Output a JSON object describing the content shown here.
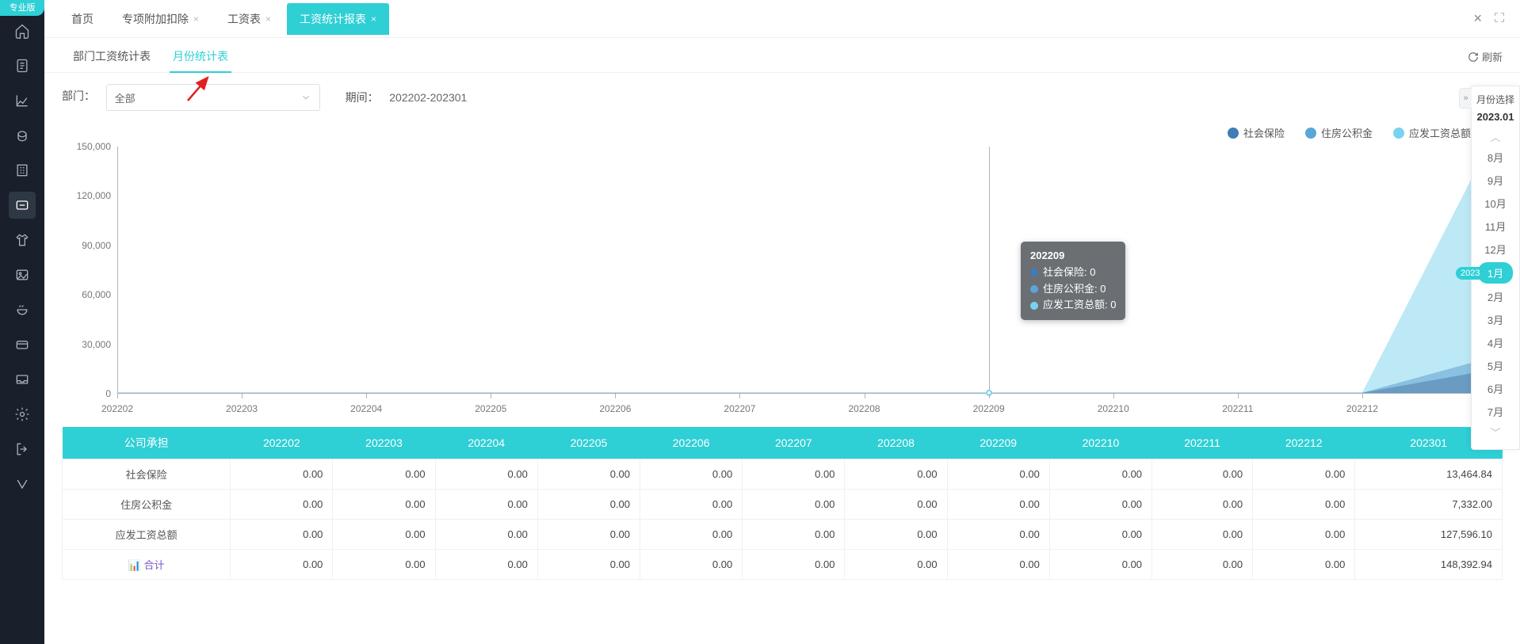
{
  "badge": "专业版",
  "tabs": [
    {
      "label": "首页",
      "closable": false,
      "active": false
    },
    {
      "label": "专项附加扣除",
      "closable": true,
      "active": false
    },
    {
      "label": "工资表",
      "closable": true,
      "active": false
    },
    {
      "label": "工资统计报表",
      "closable": true,
      "active": true
    }
  ],
  "subtabs": [
    {
      "label": "部门工资统计表",
      "active": false
    },
    {
      "label": "月份统计表",
      "active": true
    }
  ],
  "refresh_label": "刷新",
  "filters": {
    "dept_label": "部门：",
    "dept_value": "全部",
    "period_label": "期间：",
    "period_value": "202202-202301"
  },
  "legend": [
    {
      "label": "社会保险",
      "color": "#3f7db7"
    },
    {
      "label": "住房公积金",
      "color": "#5aa6d8"
    },
    {
      "label": "应发工资总额",
      "color": "#79d3ef"
    }
  ],
  "chart": {
    "type": "area",
    "ylim": [
      0,
      150000
    ],
    "yticks": [
      0,
      30000,
      60000,
      90000,
      120000,
      150000
    ],
    "ytick_labels": [
      "0",
      "30,000",
      "60,000",
      "90,000",
      "120,000",
      "150,000"
    ],
    "xcats": [
      "202202",
      "202203",
      "202204",
      "202205",
      "202206",
      "202207",
      "202208",
      "202209",
      "202210",
      "202211",
      "202212",
      "202301"
    ],
    "series": [
      {
        "name": "社会保险",
        "color": "#3f7db7",
        "fill": "#5f8fb9",
        "values": [
          0,
          0,
          0,
          0,
          0,
          0,
          0,
          0,
          0,
          0,
          0,
          13464.84
        ]
      },
      {
        "name": "住房公积金",
        "color": "#5aa6d8",
        "fill": "#7ab3d8",
        "values": [
          0,
          0,
          0,
          0,
          0,
          0,
          0,
          0,
          0,
          0,
          0,
          20796.84
        ]
      },
      {
        "name": "应发工资总额",
        "color": "#79d3ef",
        "fill": "#a7e1f3",
        "values": [
          0,
          0,
          0,
          0,
          0,
          0,
          0,
          0,
          0,
          0,
          0,
          148392.94
        ]
      }
    ],
    "crosshair_index": 7,
    "tooltip": {
      "title": "202209",
      "rows": [
        {
          "label": "社会保险: 0",
          "color": "#3f7db7"
        },
        {
          "label": "住房公积金: 0",
          "color": "#5aa6d8"
        },
        {
          "label": "应发工资总额: 0",
          "color": "#79d3ef"
        }
      ]
    },
    "background_color": "#ffffff",
    "axis_color": "#b0b4ba",
    "axis_label_color": "#777777",
    "axis_fontsize": 12
  },
  "table": {
    "header_first": "公司承担",
    "columns": [
      "202202",
      "202203",
      "202204",
      "202205",
      "202206",
      "202207",
      "202208",
      "202209",
      "202210",
      "202211",
      "202212",
      "202301"
    ],
    "rows": [
      {
        "label": "社会保险",
        "values": [
          "0.00",
          "0.00",
          "0.00",
          "0.00",
          "0.00",
          "0.00",
          "0.00",
          "0.00",
          "0.00",
          "0.00",
          "0.00",
          "13,464.84"
        ]
      },
      {
        "label": "住房公积金",
        "values": [
          "0.00",
          "0.00",
          "0.00",
          "0.00",
          "0.00",
          "0.00",
          "0.00",
          "0.00",
          "0.00",
          "0.00",
          "0.00",
          "7,332.00"
        ]
      },
      {
        "label": "应发工资总额",
        "values": [
          "0.00",
          "0.00",
          "0.00",
          "0.00",
          "0.00",
          "0.00",
          "0.00",
          "0.00",
          "0.00",
          "0.00",
          "0.00",
          "127,596.10"
        ]
      }
    ],
    "total_row": {
      "label": "合计",
      "values": [
        "0.00",
        "0.00",
        "0.00",
        "0.00",
        "0.00",
        "0.00",
        "0.00",
        "0.00",
        "0.00",
        "0.00",
        "0.00",
        "148,392.94"
      ]
    },
    "header_bg": "#2ecfd5",
    "header_color": "#ffffff",
    "border_color": "#eef0f2"
  },
  "month_panel": {
    "title": "月份选择",
    "year": "2023.01",
    "badge_year": "2023",
    "items": [
      "8月",
      "9月",
      "10月",
      "11月",
      "12月",
      "1月",
      "2月",
      "3月",
      "4月",
      "5月",
      "6月",
      "7月"
    ],
    "selected_index": 5
  },
  "colors": {
    "accent": "#2ecfd5",
    "sidebar_bg": "#19202b",
    "text": "#333333",
    "muted": "#777777"
  }
}
